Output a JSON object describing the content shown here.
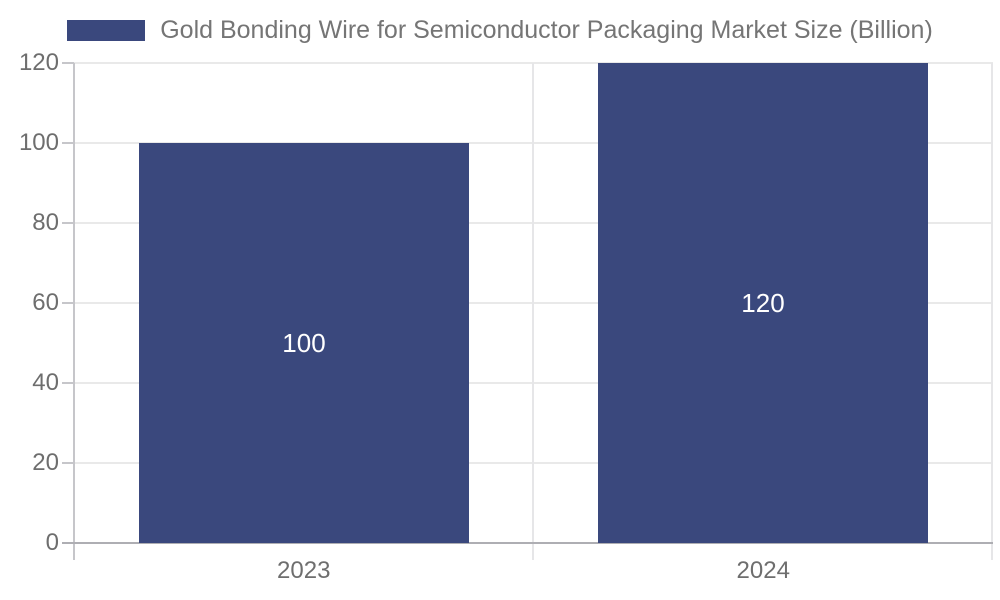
{
  "chart_data": {
    "type": "bar",
    "title": "",
    "series_name": "Gold Bonding Wire for Semiconductor Packaging Market Size (Billion)",
    "categories": [
      "2023",
      "2024"
    ],
    "values": [
      100,
      120
    ],
    "value_labels": [
      "100",
      "120"
    ],
    "xlabel": "",
    "ylabel": "",
    "ylim": [
      0,
      120
    ],
    "yticks": [
      0,
      20,
      40,
      60,
      80,
      100,
      120
    ],
    "grid": true,
    "legend_position": "top",
    "bar_color": "#3A487D",
    "value_label_color": "#ffffff",
    "axis_text_color": "#6e6e6e",
    "legend_text_color": "#757575"
  }
}
